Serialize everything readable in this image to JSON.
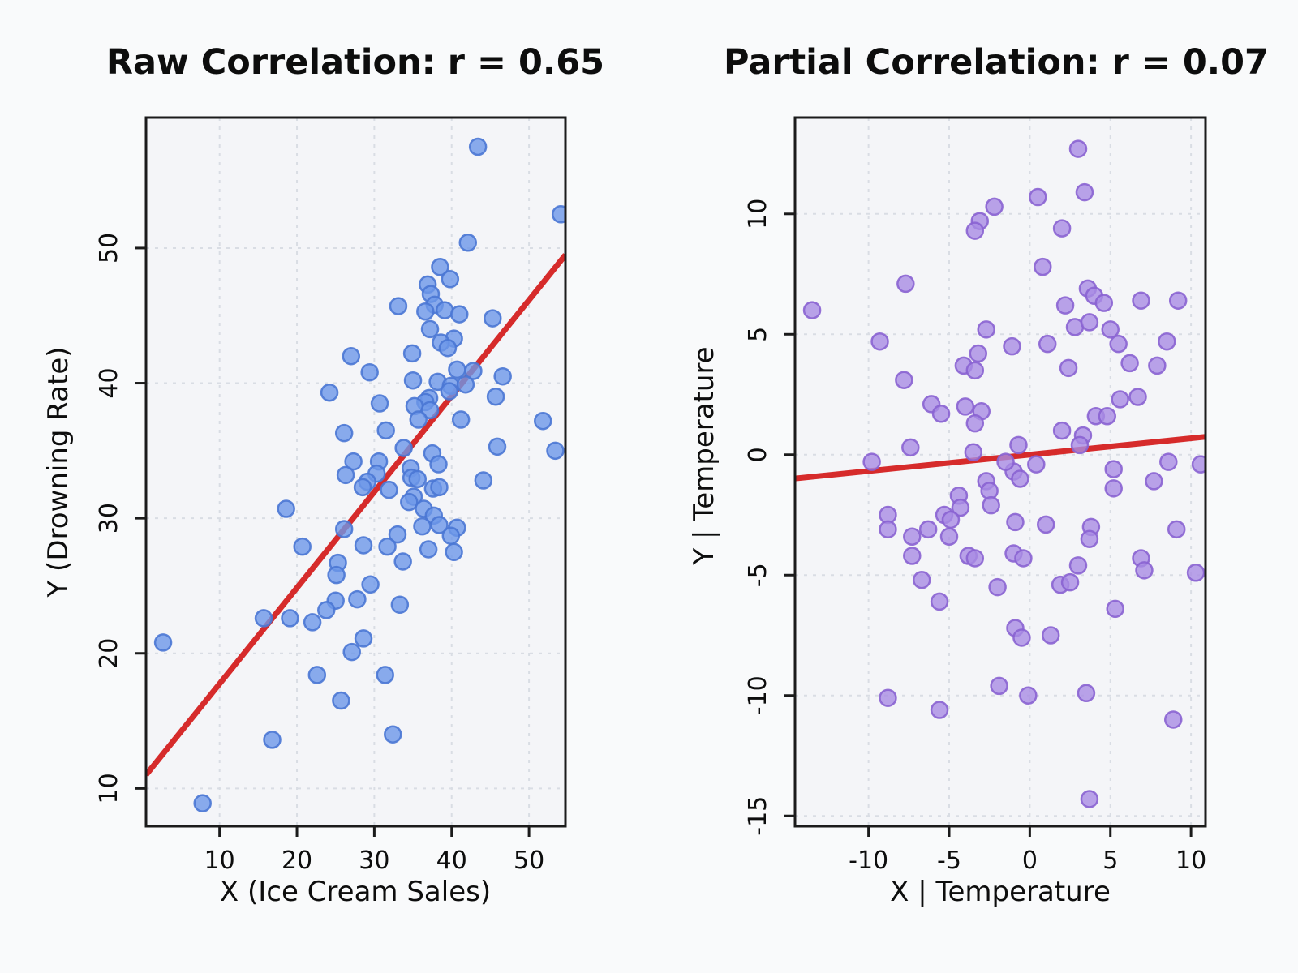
{
  "page": {
    "background": "#f9fafb",
    "plot_background": "#f4f5f8",
    "box_color": "#1b1b1b",
    "grid_color": "#d9dde4"
  },
  "chart_data": [
    {
      "type": "scatter",
      "title": "Raw Correlation: r = 0.65",
      "r_value": 0.65,
      "xlabel": "X (Ice Cream Sales)",
      "ylabel": "Y (Drowning Rate)",
      "xlim": [
        0.49,
        54.71
      ],
      "ylim": [
        7.2,
        59.66
      ],
      "xticks": [
        10,
        20,
        30,
        40,
        50
      ],
      "yticks": [
        10,
        20,
        30,
        40,
        50
      ],
      "grid": true,
      "legend": "none",
      "point_fill": "#6d97e8",
      "point_stroke": "#4a77d4",
      "point_opacity": 0.8,
      "fit_line": {
        "slope": 0.71,
        "intercept": 10.65,
        "color": "#d62b2b",
        "width": 7
      },
      "points": [
        [
          27.0,
          42.0
        ],
        [
          24.2,
          39.3
        ],
        [
          26.1,
          36.3
        ],
        [
          43.4,
          57.5
        ],
        [
          54.1,
          52.5
        ],
        [
          42.1,
          50.4
        ],
        [
          38.5,
          48.6
        ],
        [
          39.8,
          47.7
        ],
        [
          36.9,
          47.3
        ],
        [
          37.3,
          46.6
        ],
        [
          33.1,
          45.7
        ],
        [
          37.8,
          45.8
        ],
        [
          36.6,
          45.3
        ],
        [
          39.1,
          45.4
        ],
        [
          41.0,
          45.1
        ],
        [
          45.3,
          44.8
        ],
        [
          37.2,
          44.0
        ],
        [
          40.3,
          43.3
        ],
        [
          38.6,
          43.0
        ],
        [
          39.5,
          42.6
        ],
        [
          34.9,
          42.2
        ],
        [
          29.4,
          40.8
        ],
        [
          40.7,
          41.0
        ],
        [
          42.8,
          40.9
        ],
        [
          46.6,
          40.5
        ],
        [
          35.0,
          40.2
        ],
        [
          38.2,
          40.1
        ],
        [
          39.9,
          39.8
        ],
        [
          41.8,
          39.9
        ],
        [
          39.7,
          39.4
        ],
        [
          45.7,
          39.0
        ],
        [
          37.1,
          38.9
        ],
        [
          36.6,
          38.6
        ],
        [
          30.7,
          38.5
        ],
        [
          35.2,
          38.3
        ],
        [
          37.2,
          38.0
        ],
        [
          35.7,
          37.3
        ],
        [
          41.2,
          37.3
        ],
        [
          51.8,
          37.2
        ],
        [
          31.5,
          36.5
        ],
        [
          33.8,
          35.2
        ],
        [
          45.9,
          35.3
        ],
        [
          53.4,
          35.0
        ],
        [
          37.5,
          34.8
        ],
        [
          30.6,
          34.2
        ],
        [
          27.3,
          34.2
        ],
        [
          38.3,
          34.0
        ],
        [
          34.7,
          33.7
        ],
        [
          26.3,
          33.2
        ],
        [
          18.6,
          30.7
        ],
        [
          26.1,
          29.2
        ],
        [
          20.7,
          27.9
        ],
        [
          25.3,
          26.7
        ],
        [
          25.1,
          25.8
        ],
        [
          25.0,
          23.9
        ],
        [
          27.8,
          24.0
        ],
        [
          23.8,
          23.2
        ],
        [
          15.7,
          22.6
        ],
        [
          19.1,
          22.6
        ],
        [
          22.0,
          22.3
        ],
        [
          2.7,
          20.8
        ],
        [
          27.1,
          20.1
        ],
        [
          22.6,
          18.4
        ],
        [
          25.7,
          16.5
        ],
        [
          16.8,
          13.6
        ],
        [
          7.8,
          8.9
        ],
        [
          30.3,
          33.3
        ],
        [
          29.1,
          32.7
        ],
        [
          28.5,
          32.3
        ],
        [
          31.9,
          32.1
        ],
        [
          34.8,
          33.0
        ],
        [
          35.6,
          32.9
        ],
        [
          37.6,
          32.2
        ],
        [
          38.4,
          32.3
        ],
        [
          35.1,
          31.6
        ],
        [
          34.5,
          31.2
        ],
        [
          44.1,
          32.8
        ],
        [
          36.4,
          30.7
        ],
        [
          37.7,
          30.2
        ],
        [
          36.2,
          29.4
        ],
        [
          38.4,
          29.5
        ],
        [
          40.7,
          29.3
        ],
        [
          39.9,
          28.7
        ],
        [
          33.0,
          28.8
        ],
        [
          28.6,
          28.0
        ],
        [
          31.7,
          27.9
        ],
        [
          37.0,
          27.7
        ],
        [
          40.3,
          27.5
        ],
        [
          33.7,
          26.8
        ],
        [
          29.5,
          25.1
        ],
        [
          33.3,
          23.6
        ],
        [
          28.6,
          21.1
        ],
        [
          31.4,
          18.4
        ],
        [
          32.4,
          14.0
        ]
      ]
    },
    {
      "type": "scatter",
      "title": "Partial Correlation: r = 0.07",
      "r_value": 0.07,
      "xlabel": "X | Temperature",
      "ylabel": "Y | Temperature",
      "xlim": [
        -14.56,
        10.9
      ],
      "ylim": [
        -15.43,
        14.0
      ],
      "xticks": [
        -10,
        -5,
        0,
        5,
        10
      ],
      "yticks": [
        -15,
        -10,
        -5,
        0,
        5,
        10
      ],
      "grid": true,
      "legend": "none",
      "point_fill": "#a98ce4",
      "point_stroke": "#8a63d2",
      "point_opacity": 0.8,
      "fit_line": {
        "slope": 0.068,
        "intercept": 0.0,
        "color": "#d62b2b",
        "width": 7
      },
      "points": [
        [
          -2.2,
          10.3
        ],
        [
          -3.1,
          9.7
        ],
        [
          -3.4,
          9.3
        ],
        [
          -7.7,
          7.1
        ],
        [
          -13.5,
          6.0
        ],
        [
          -2.7,
          5.2
        ],
        [
          -9.3,
          4.7
        ],
        [
          -3.2,
          4.2
        ],
        [
          -4.1,
          3.7
        ],
        [
          -3.4,
          3.5
        ],
        [
          -7.8,
          3.1
        ],
        [
          -6.1,
          2.1
        ],
        [
          -5.5,
          1.7
        ],
        [
          -4.0,
          2.0
        ],
        [
          -3.0,
          1.8
        ],
        [
          -3.4,
          1.3
        ],
        [
          -7.4,
          0.3
        ],
        [
          -3.5,
          0.1
        ],
        [
          -9.8,
          -0.3
        ],
        [
          3.0,
          12.7
        ],
        [
          3.4,
          10.9
        ],
        [
          0.5,
          10.7
        ],
        [
          2.0,
          9.4
        ],
        [
          0.8,
          7.8
        ],
        [
          3.6,
          6.9
        ],
        [
          4.0,
          6.6
        ],
        [
          4.6,
          6.3
        ],
        [
          6.9,
          6.4
        ],
        [
          9.2,
          6.4
        ],
        [
          2.2,
          6.2
        ],
        [
          2.8,
          5.3
        ],
        [
          3.7,
          5.5
        ],
        [
          5.0,
          5.2
        ],
        [
          -1.1,
          4.5
        ],
        [
          1.1,
          4.6
        ],
        [
          5.5,
          4.6
        ],
        [
          8.5,
          4.7
        ],
        [
          6.2,
          3.8
        ],
        [
          7.9,
          3.7
        ],
        [
          2.4,
          3.6
        ],
        [
          5.6,
          2.3
        ],
        [
          6.7,
          2.4
        ],
        [
          4.1,
          1.6
        ],
        [
          4.8,
          1.6
        ],
        [
          2.0,
          1.0
        ],
        [
          3.3,
          0.8
        ],
        [
          -0.7,
          0.4
        ],
        [
          3.1,
          0.4
        ],
        [
          8.6,
          -0.3
        ],
        [
          10.6,
          -0.4
        ],
        [
          -2.7,
          -1.1
        ],
        [
          -2.5,
          -1.5
        ],
        [
          -4.4,
          -1.7
        ],
        [
          -2.4,
          -2.1
        ],
        [
          -4.3,
          -2.2
        ],
        [
          -8.8,
          -2.5
        ],
        [
          -5.3,
          -2.5
        ],
        [
          -4.9,
          -2.7
        ],
        [
          -8.8,
          -3.1
        ],
        [
          -6.3,
          -3.1
        ],
        [
          -7.3,
          -3.4
        ],
        [
          -5.0,
          -3.4
        ],
        [
          -7.3,
          -4.2
        ],
        [
          -3.8,
          -4.2
        ],
        [
          -3.4,
          -4.3
        ],
        [
          -6.7,
          -5.2
        ],
        [
          -2.0,
          -5.5
        ],
        [
          -5.6,
          -6.1
        ],
        [
          -1.9,
          -9.6
        ],
        [
          -8.8,
          -10.1
        ],
        [
          -5.6,
          -10.6
        ],
        [
          -1.0,
          -0.7
        ],
        [
          -0.6,
          -1.0
        ],
        [
          -1.5,
          -0.3
        ],
        [
          0.4,
          -0.4
        ],
        [
          5.2,
          -0.6
        ],
        [
          5.2,
          -1.4
        ],
        [
          7.7,
          -1.1
        ],
        [
          -0.9,
          -2.8
        ],
        [
          1.0,
          -2.9
        ],
        [
          3.8,
          -3.0
        ],
        [
          3.7,
          -3.5
        ],
        [
          9.1,
          -3.1
        ],
        [
          -1.0,
          -4.1
        ],
        [
          -0.4,
          -4.3
        ],
        [
          3.0,
          -4.6
        ],
        [
          6.9,
          -4.3
        ],
        [
          7.1,
          -4.8
        ],
        [
          10.3,
          -4.9
        ],
        [
          1.9,
          -5.4
        ],
        [
          2.5,
          -5.3
        ],
        [
          5.3,
          -6.4
        ],
        [
          -0.9,
          -7.2
        ],
        [
          -0.5,
          -7.6
        ],
        [
          1.3,
          -7.5
        ],
        [
          -0.1,
          -10.0
        ],
        [
          3.5,
          -9.9
        ],
        [
          8.9,
          -11.0
        ],
        [
          3.7,
          -14.3
        ]
      ]
    }
  ]
}
